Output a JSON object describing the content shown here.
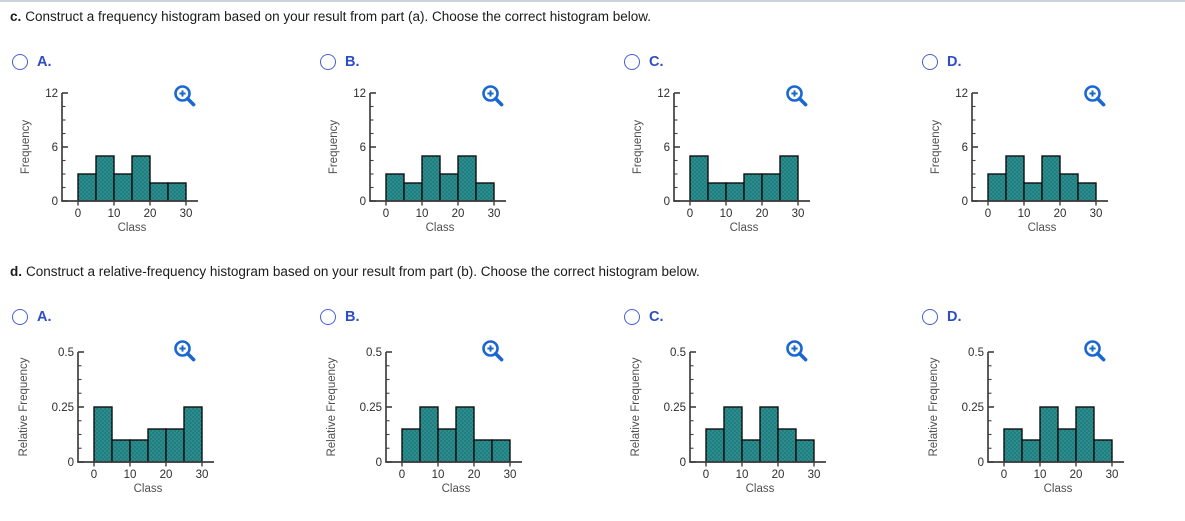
{
  "page": {
    "background": "#ffffff",
    "top_border_color": "#ccd3de"
  },
  "colors": {
    "bar_fill": "#2a8d8e",
    "bar_dot": "#14595a",
    "bar_stroke": "#101010",
    "axis": "#3f3f3f",
    "tick_text": "#2d2d2d",
    "label_text": "#4f4f4f",
    "option_letter_blue": "#2e4cc7",
    "radio_border_blue": "#4a5fd0",
    "zoom_icon_blue": "#1a67d2",
    "question_text_color": "#1a1a1a"
  },
  "sections": [
    {
      "id": "c",
      "question_prefix": "c.",
      "question_text": "Construct a frequency histogram based on your result from part (a). Choose the correct histogram below.",
      "options": [
        {
          "label": "A."
        },
        {
          "label": "B."
        },
        {
          "label": "C."
        },
        {
          "label": "D."
        }
      ]
    },
    {
      "id": "d",
      "question_prefix": "d.",
      "question_text": "Construct a relative-frequency histogram based on your result from part (b). Choose the correct histogram below.",
      "options": [
        {
          "label": "A."
        },
        {
          "label": "B."
        },
        {
          "label": "C."
        },
        {
          "label": "D."
        }
      ]
    }
  ],
  "chart_data": [
    {
      "section": "c",
      "option": "A",
      "type": "bar",
      "xlabel": "Class",
      "ylabel": "Frequency",
      "xlim": [
        0,
        30
      ],
      "ylim": [
        0,
        12
      ],
      "xticks": [
        0,
        10,
        20,
        30
      ],
      "yticks": [
        0,
        6,
        12
      ],
      "y_minor_step": 1.5,
      "bin_edges": [
        0,
        5,
        10,
        15,
        20,
        25,
        30
      ],
      "values": [
        3,
        5,
        3,
        5,
        2,
        2
      ]
    },
    {
      "section": "c",
      "option": "B",
      "type": "bar",
      "xlabel": "Class",
      "ylabel": "Frequency",
      "xlim": [
        0,
        30
      ],
      "ylim": [
        0,
        12
      ],
      "xticks": [
        0,
        10,
        20,
        30
      ],
      "yticks": [
        0,
        6,
        12
      ],
      "y_minor_step": 1.5,
      "bin_edges": [
        0,
        5,
        10,
        15,
        20,
        25,
        30
      ],
      "values": [
        3,
        2,
        5,
        3,
        5,
        2
      ]
    },
    {
      "section": "c",
      "option": "C",
      "type": "bar",
      "xlabel": "Class",
      "ylabel": "Frequency",
      "xlim": [
        0,
        30
      ],
      "ylim": [
        0,
        12
      ],
      "xticks": [
        0,
        10,
        20,
        30
      ],
      "yticks": [
        0,
        6,
        12
      ],
      "y_minor_step": 1.5,
      "bin_edges": [
        0,
        5,
        10,
        15,
        20,
        25,
        30
      ],
      "values": [
        5,
        2,
        2,
        3,
        3,
        5
      ]
    },
    {
      "section": "c",
      "option": "D",
      "type": "bar",
      "xlabel": "Class",
      "ylabel": "Frequency",
      "xlim": [
        0,
        30
      ],
      "ylim": [
        0,
        12
      ],
      "xticks": [
        0,
        10,
        20,
        30
      ],
      "yticks": [
        0,
        6,
        12
      ],
      "y_minor_step": 1.5,
      "bin_edges": [
        0,
        5,
        10,
        15,
        20,
        25,
        30
      ],
      "values": [
        3,
        5,
        2,
        5,
        3,
        2
      ]
    },
    {
      "section": "d",
      "option": "A",
      "type": "bar",
      "xlabel": "Class",
      "ylabel": "Relative Frequency",
      "xlim": [
        0,
        30
      ],
      "ylim": [
        0,
        0.5
      ],
      "xticks": [
        0,
        10,
        20,
        30
      ],
      "yticks": [
        0,
        0.25,
        0.5
      ],
      "y_minor_step": 0.0625,
      "bin_edges": [
        0,
        5,
        10,
        15,
        20,
        25,
        30
      ],
      "values": [
        0.25,
        0.1,
        0.1,
        0.15,
        0.15,
        0.25
      ]
    },
    {
      "section": "d",
      "option": "B",
      "type": "bar",
      "xlabel": "Class",
      "ylabel": "Relative Frequency",
      "xlim": [
        0,
        30
      ],
      "ylim": [
        0,
        0.5
      ],
      "xticks": [
        0,
        10,
        20,
        30
      ],
      "yticks": [
        0,
        0.25,
        0.5
      ],
      "y_minor_step": 0.0625,
      "bin_edges": [
        0,
        5,
        10,
        15,
        20,
        25,
        30
      ],
      "values": [
        0.15,
        0.25,
        0.15,
        0.25,
        0.1,
        0.1
      ]
    },
    {
      "section": "d",
      "option": "C",
      "type": "bar",
      "xlabel": "Class",
      "ylabel": "Relative Frequency",
      "xlim": [
        0,
        30
      ],
      "ylim": [
        0,
        0.5
      ],
      "xticks": [
        0,
        10,
        20,
        30
      ],
      "yticks": [
        0,
        0.25,
        0.5
      ],
      "y_minor_step": 0.0625,
      "bin_edges": [
        0,
        5,
        10,
        15,
        20,
        25,
        30
      ],
      "values": [
        0.15,
        0.25,
        0.1,
        0.25,
        0.15,
        0.1
      ]
    },
    {
      "section": "d",
      "option": "D",
      "type": "bar",
      "xlabel": "Class",
      "ylabel": "Relative Frequency",
      "xlim": [
        0,
        30
      ],
      "ylim": [
        0,
        0.5
      ],
      "xticks": [
        0,
        10,
        20,
        30
      ],
      "yticks": [
        0,
        0.25,
        0.5
      ],
      "y_minor_step": 0.0625,
      "bin_edges": [
        0,
        5,
        10,
        15,
        20,
        25,
        30
      ],
      "values": [
        0.15,
        0.1,
        0.25,
        0.15,
        0.25,
        0.1
      ]
    }
  ]
}
